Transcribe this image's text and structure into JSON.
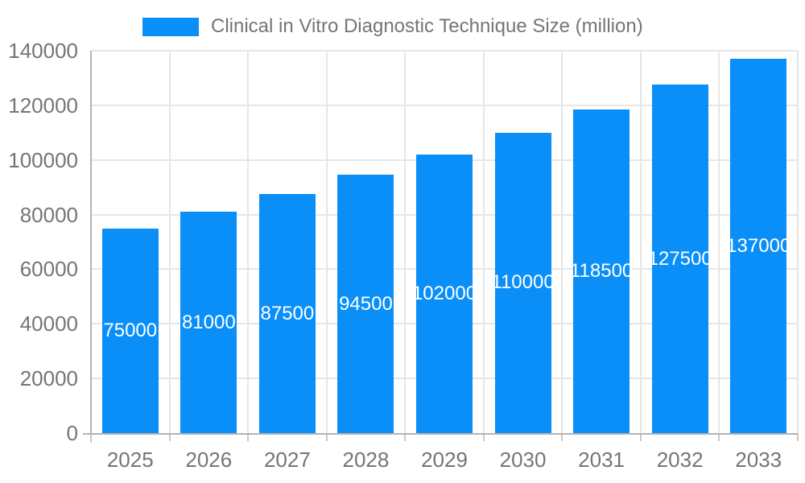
{
  "chart_data": {
    "type": "bar",
    "title": "Clinical in Vitro Diagnostic Technique Size (million)",
    "categories": [
      "2025",
      "2026",
      "2027",
      "2028",
      "2029",
      "2030",
      "2031",
      "2032",
      "2033"
    ],
    "values": [
      75000,
      81000,
      87500,
      94500,
      102000,
      110000,
      118500,
      127500,
      137000
    ],
    "series_name": "Clinical in Vitro Diagnostic Technique Size (million)",
    "xlabel": "",
    "ylabel": "",
    "ylim": [
      0,
      140000
    ],
    "ytick_step": 20000,
    "yticks": [
      0,
      20000,
      40000,
      60000,
      80000,
      100000,
      120000,
      140000
    ],
    "grid": true,
    "legend_position": "top",
    "bar_color": "#0a8ff9",
    "bar_label_color": "#ffffff",
    "axis_text_color": "#757575",
    "grid_color": "#e6e6e6",
    "axis_line_color": "#b3b3b3",
    "tick_mark_color": "#c9c9c9",
    "background_color": "#ffffff"
  }
}
